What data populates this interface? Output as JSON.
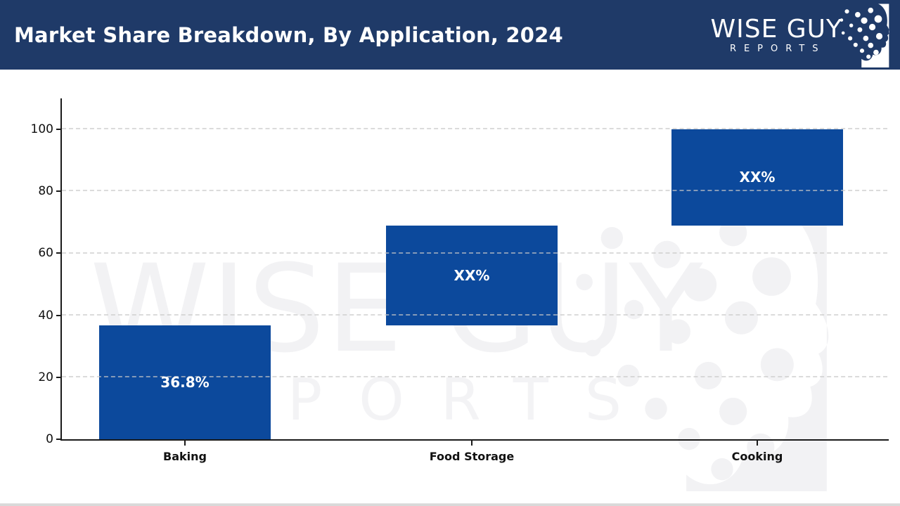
{
  "header": {
    "title": "Market Share Breakdown, By Application, 2024",
    "logo": {
      "line1": "WISE GUY",
      "line2": "REPORTS"
    }
  },
  "watermark": {
    "line1": "WISE GUY",
    "line2": "REPORTS"
  },
  "colors": {
    "header_bg": "#1f3a68",
    "bar": "#0c499c",
    "bar_label": "#ffffff",
    "grid": "#cccccc",
    "axis": "#1a1a1a",
    "watermark": "#f2f2f4"
  },
  "chart_data": {
    "type": "bar",
    "subtype": "waterfall",
    "title": "Market Share Breakdown, By Application, 2024",
    "categories": [
      "Baking",
      "Food Storage",
      "Cooking"
    ],
    "segments": [
      {
        "category": "Baking",
        "start": 0,
        "end": 36.8,
        "label": "36.8%"
      },
      {
        "category": "Food Storage",
        "start": 36.8,
        "end": 69,
        "label": "XX%"
      },
      {
        "category": "Cooking",
        "start": 69,
        "end": 100,
        "label": "XX%"
      }
    ],
    "y_ticks": [
      0,
      20,
      40,
      60,
      80,
      100
    ],
    "ylim": [
      0,
      104.8
    ],
    "xlabel": "",
    "ylabel": "",
    "grid": "horizontal-dashed",
    "legend": "none",
    "bar_color": "#0c499c",
    "label_color": "#ffffff"
  }
}
